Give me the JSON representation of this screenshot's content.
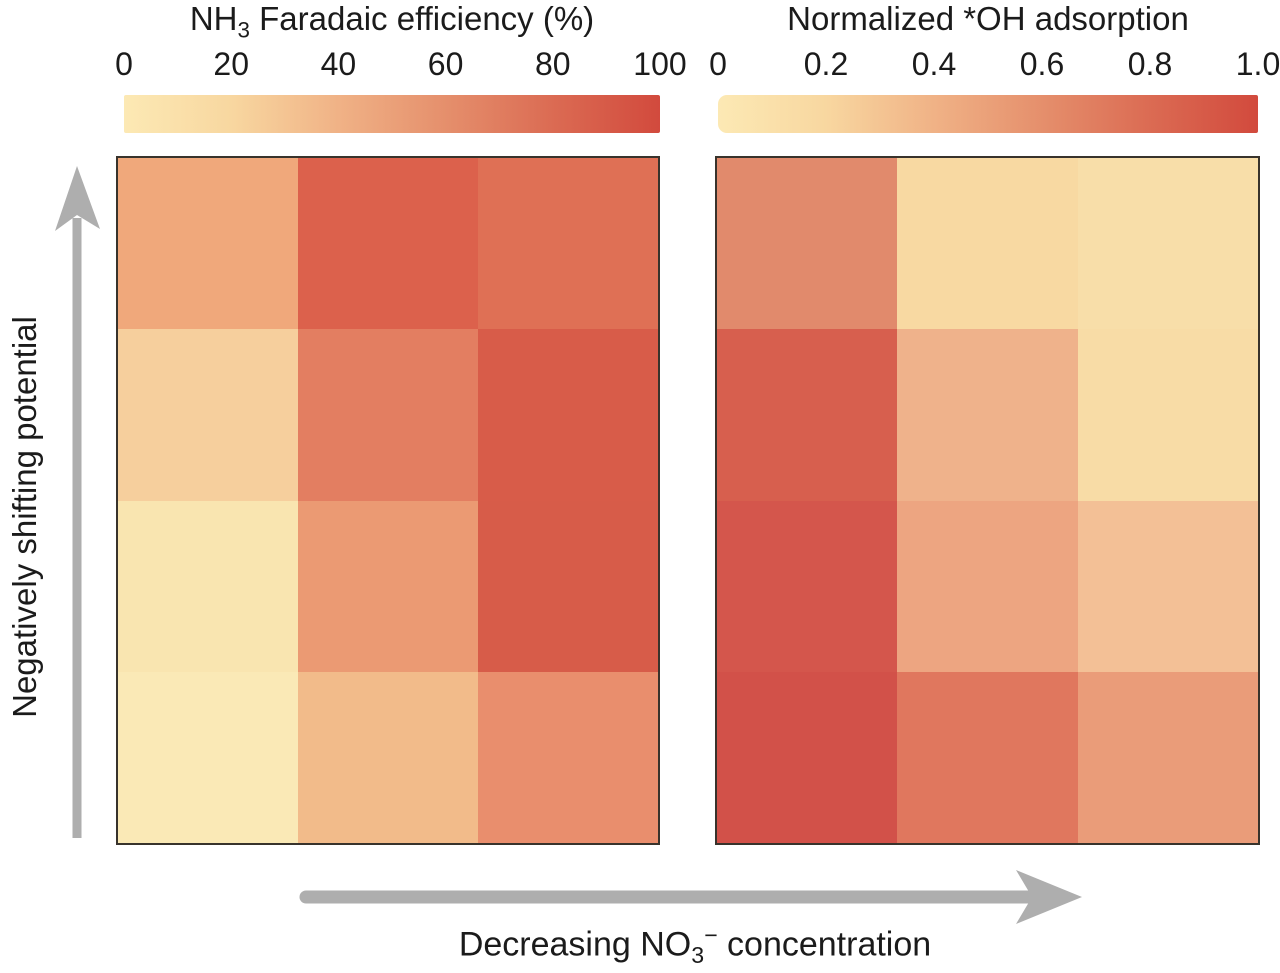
{
  "figure": {
    "background": "#ffffff",
    "text_color": "#1b1b1b",
    "arrow_color": "#aeaeae",
    "heatmap_border_color": "#38332c"
  },
  "left_panel": {
    "title": {
      "prefix": "NH",
      "sub": "3",
      "suffix": " Faradaic efficiency (%)"
    },
    "colorbar_ticks": [
      "0",
      "20",
      "40",
      "60",
      "80",
      "100"
    ],
    "colorbar_stops": [
      "#fce9b4",
      "#f8d7a0",
      "#f0b286",
      "#e58f6c",
      "#db6b53",
      "#d24a3d"
    ]
  },
  "right_panel": {
    "title": "Normalized *OH adsorption",
    "colorbar_ticks": [
      "0",
      "0.2",
      "0.4",
      "0.6",
      "0.8",
      "1.0"
    ],
    "colorbar_stops": [
      "#fce9b4",
      "#f8d7a0",
      "#f0b286",
      "#e58f6c",
      "#db6b53",
      "#d24a3d"
    ]
  },
  "y_axis_label": "Negatively shifting potential",
  "x_axis_label": {
    "prefix": "Decreasing NO",
    "sub": "3",
    "sup": "−",
    "suffix": " concentration"
  },
  "chart_data": [
    {
      "type": "heatmap",
      "title": "NH3 Faradaic efficiency (%)",
      "rows": 4,
      "cols": 3,
      "row_axis": "Negatively shifting potential (upward = more negative)",
      "col_axis": "Decreasing NO3- concentration (left to right)",
      "colorbar": {
        "min": 0,
        "max": 100,
        "ticks": [
          0,
          20,
          40,
          60,
          80,
          100
        ]
      },
      "values": [
        [
          38,
          78,
          68
        ],
        [
          17,
          60,
          85
        ],
        [
          6,
          45,
          86
        ],
        [
          3,
          28,
          52
        ]
      ],
      "cell_colors": [
        [
          "#f0a87b",
          "#dc614c",
          "#df7055"
        ],
        [
          "#f6cf9d",
          "#e37e61",
          "#d85c49"
        ],
        [
          "#f9e5b0",
          "#eb9a73",
          "#d75c49"
        ],
        [
          "#fae9b6",
          "#f2bb8a",
          "#e98e6d"
        ]
      ]
    },
    {
      "type": "heatmap",
      "title": "Normalized *OH adsorption",
      "rows": 4,
      "cols": 3,
      "row_axis": "Negatively shifting potential (upward = more negative)",
      "col_axis": "Decreasing NO3- concentration (left to right)",
      "colorbar": {
        "min": 0,
        "max": 1,
        "ticks": [
          0,
          0.2,
          0.4,
          0.6,
          0.8,
          1.0
        ]
      },
      "values": [
        [
          0.58,
          0.15,
          0.1
        ],
        [
          0.88,
          0.32,
          0.12
        ],
        [
          0.92,
          0.42,
          0.27
        ],
        [
          0.95,
          0.65,
          0.45
        ]
      ],
      "cell_colors": [
        [
          "#e18a6c",
          "#f8d9a2",
          "#f8dea9"
        ],
        [
          "#d75f4e",
          "#efb28b",
          "#f8dca6"
        ],
        [
          "#d4564c",
          "#eda581",
          "#f3c096"
        ],
        [
          "#d25149",
          "#e0775e",
          "#ea9c79"
        ]
      ]
    }
  ]
}
